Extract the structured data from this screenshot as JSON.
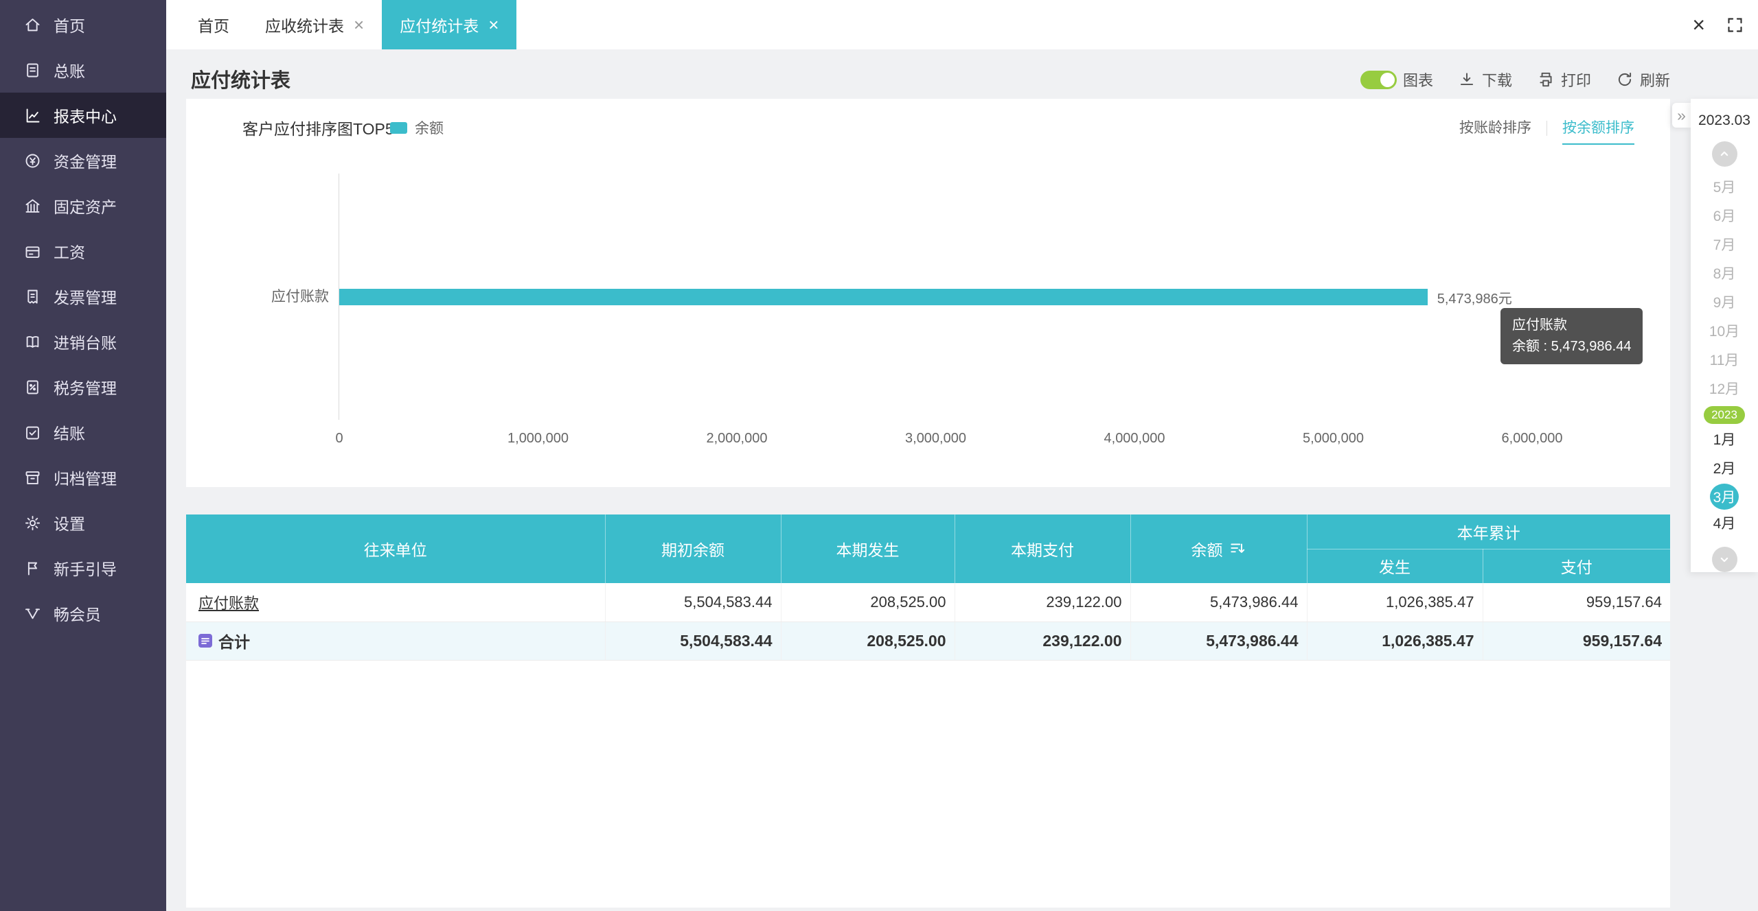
{
  "colors": {
    "teal": "#3bbccb",
    "green": "#97cc40",
    "sidebar_bg": "#3f3c55",
    "sidebar_active_bg": "#262335",
    "tooltip_bg": "#323232"
  },
  "sidebar": {
    "items": [
      {
        "label": "首页",
        "icon": "home-icon",
        "active": false
      },
      {
        "label": "总账",
        "icon": "general-ledger-icon",
        "active": false
      },
      {
        "label": "报表中心",
        "icon": "report-center-icon",
        "active": true
      },
      {
        "label": "资金管理",
        "icon": "fund-management-icon",
        "active": false
      },
      {
        "label": "固定资产",
        "icon": "fixed-assets-icon",
        "active": false
      },
      {
        "label": "工资",
        "icon": "salary-icon",
        "active": false
      },
      {
        "label": "发票管理",
        "icon": "invoice-management-icon",
        "active": false
      },
      {
        "label": "进销台账",
        "icon": "purchase-sales-ledger-icon",
        "active": false
      },
      {
        "label": "税务管理",
        "icon": "tax-management-icon",
        "active": false
      },
      {
        "label": "结账",
        "icon": "closing-icon",
        "active": false
      },
      {
        "label": "归档管理",
        "icon": "archive-management-icon",
        "active": false
      },
      {
        "label": "设置",
        "icon": "settings-icon",
        "active": false
      },
      {
        "label": "新手引导",
        "icon": "beginner-guide-icon",
        "active": false
      },
      {
        "label": "畅会员",
        "icon": "member-icon",
        "active": false
      }
    ]
  },
  "tabbar": {
    "tabs": [
      {
        "label": "首页",
        "closable": false,
        "active": false
      },
      {
        "label": "应收统计表",
        "closable": true,
        "active": false
      },
      {
        "label": "应付统计表",
        "closable": true,
        "active": true
      }
    ],
    "close_symbol": "×"
  },
  "window_controls": {
    "close": "×",
    "expand": "fullscreen"
  },
  "page": {
    "title": "应付统计表",
    "toolbar": {
      "chart_toggle": "图表",
      "chart_toggle_on": true,
      "download": "下载",
      "print": "打印",
      "refresh": "刷新"
    }
  },
  "chart_data": {
    "type": "bar",
    "orientation": "horizontal",
    "title": "客户应付排序图TOP5",
    "legend": [
      {
        "label": "余额",
        "color": "#3bbccb"
      }
    ],
    "categories": [
      "应付账款"
    ],
    "values": [
      5473986.44
    ],
    "bar_value_label": "5,473,986元",
    "xlim": [
      0,
      6000000
    ],
    "x_ticks": [
      "0",
      "1,000,000",
      "2,000,000",
      "3,000,000",
      "4,000,000",
      "5,000,000",
      "6,000,000"
    ],
    "grid": false,
    "legend_position": "top",
    "sort_options": [
      {
        "label": "按账龄排序",
        "active": false
      },
      {
        "label": "按余额排序",
        "active": true
      }
    ],
    "tooltip": {
      "line1": "应付账款",
      "line2": "余额 : 5,473,986.44"
    }
  },
  "table": {
    "headers": {
      "col1": "往来单位",
      "col2": "期初余额",
      "col3": "本期发生",
      "col4": "本期支付",
      "col5": "余额",
      "group": "本年累计",
      "sub1": "发生",
      "sub2": "支付"
    },
    "rows": [
      {
        "name": "应付账款",
        "c1": "5,504,583.44",
        "c2": "208,525.00",
        "c3": "239,122.00",
        "c4": "5,473,986.44",
        "c5": "1,026,385.47",
        "c6": "959,157.64"
      }
    ],
    "total": {
      "name": "合计",
      "c1": "5,504,583.44",
      "c2": "208,525.00",
      "c3": "239,122.00",
      "c4": "5,473,986.44",
      "c5": "1,026,385.47",
      "c6": "959,157.64"
    }
  },
  "month_panel": {
    "current_period": "2023.03",
    "collapse_symbol": "»",
    "months_disabled": [
      "5月",
      "6月",
      "7月",
      "8月",
      "9月",
      "10月",
      "11月",
      "12月"
    ],
    "year_badge": "2023",
    "months_enabled": [
      {
        "label": "1月",
        "active": false
      },
      {
        "label": "2月",
        "active": false
      },
      {
        "label": "3月",
        "active": true
      },
      {
        "label": "4月",
        "active": false
      }
    ]
  }
}
